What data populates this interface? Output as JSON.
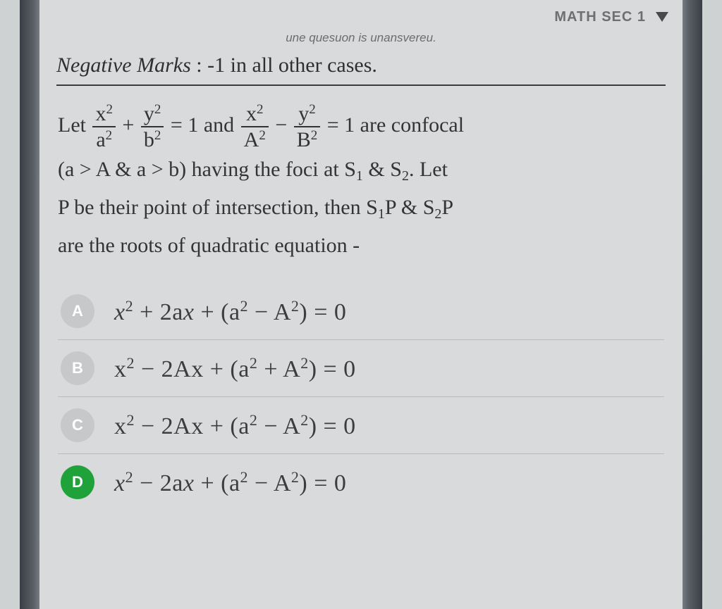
{
  "header": {
    "section_label": "MATH SEC 1",
    "partial_line": "une quesuon is unansvereu."
  },
  "negative_marks": {
    "label_italic": "Negative Marks",
    "rest": " : -1 in all other cases."
  },
  "question": {
    "line1_pre": "Let ",
    "frac1_num": "x",
    "frac1_num_sup": "2",
    "frac1_den": "a",
    "frac1_den_sup": "2",
    "plus": " + ",
    "frac2_num": "y",
    "frac2_num_sup": "2",
    "frac2_den": "b",
    "frac2_den_sup": "2",
    "eq1": " = 1 and ",
    "frac3_num": "x",
    "frac3_num_sup": "2",
    "frac3_den": "A",
    "frac3_den_sup": "2",
    "minus": " − ",
    "frac4_num": "y",
    "frac4_num_sup": "2",
    "frac4_den": "B",
    "frac4_den_sup": "2",
    "line1_post": " = 1 are confocal",
    "line2": "(a > A & a > b) having the foci at S",
    "line2_s1sub": "1",
    "line2_amp": " & S",
    "line2_s2sub": "2",
    "line2_end": ". Let",
    "line3": "P be their point of intersection, then S",
    "line3_s1sub": "1",
    "line3_mid": "P & S",
    "line3_s2sub": "2",
    "line3_end": "P",
    "line4": "are the roots of quadratic equation -"
  },
  "options": [
    {
      "id": "A",
      "selected": false,
      "expr_var1": "x",
      "op1": " + 2a",
      "var2": "x",
      "op2": " + (a",
      "op3": " − A",
      "tail": ") = 0"
    },
    {
      "id": "B",
      "selected": false,
      "expr_var1": "x",
      "op1": " − 2A",
      "var2": "x",
      "op2": " + (a",
      "op3": " + A",
      "tail": ") = 0"
    },
    {
      "id": "C",
      "selected": false,
      "expr_var1": "x",
      "op1": " − 2A",
      "var2": "x",
      "op2": " + (a",
      "op3": " − A",
      "tail": ") = 0"
    },
    {
      "id": "D",
      "selected": true,
      "expr_var1": "x",
      "op1": " − 2a",
      "var2": "x",
      "op2": " + (a",
      "op3": " − A",
      "tail": ") = 0"
    }
  ],
  "colors": {
    "screen_bg": "#d8dadb",
    "text": "#333436",
    "bubble_grey": "#c6c8c9",
    "bubble_green": "#1fa23a",
    "divider": "#b9bbbc"
  }
}
